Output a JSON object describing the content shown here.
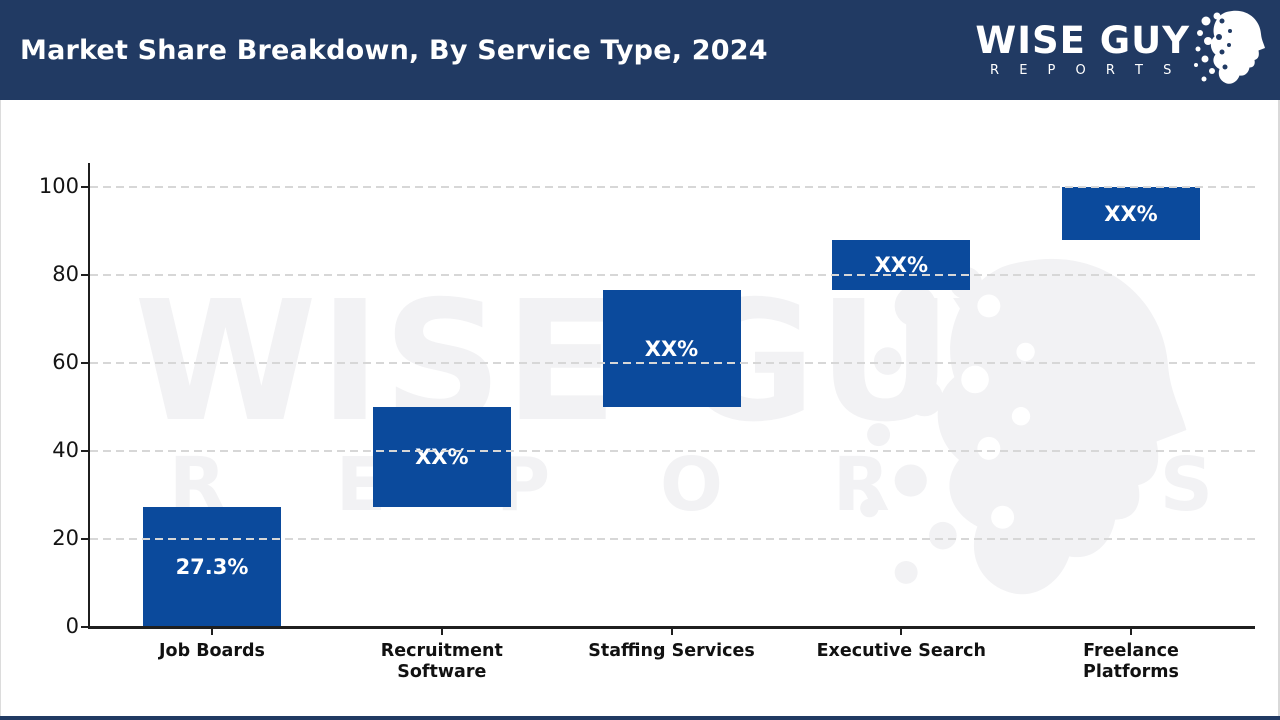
{
  "header": {
    "title": "Market Share Breakdown, By Service Type, 2024",
    "bg_color": "#213a63",
    "logo": {
      "name": "WISE GUY",
      "sub": "R E P O R T S",
      "icon": "dotted-head-profile"
    }
  },
  "watermark": {
    "line1": "WISE GUY",
    "line2": "R E P O R T S",
    "icon": "dotted-head-profile",
    "color": "#f2f2f4"
  },
  "chart_data": {
    "type": "bar",
    "subtype": "floating-waterfall",
    "title": "Market Share Breakdown, By Service Type, 2024",
    "xlabel": "",
    "ylabel": "",
    "categories": [
      "Job Boards",
      "Recruitment Software",
      "Staffing Services",
      "Executive Search",
      "Freelance Platforms"
    ],
    "category_label_lines": [
      [
        "Job Boards"
      ],
      [
        "Recruitment",
        "Software"
      ],
      [
        "Staffing Services"
      ],
      [
        "Executive Search"
      ],
      [
        "Freelance",
        "Platforms"
      ]
    ],
    "segments": [
      {
        "category": "Job Boards",
        "start": 0,
        "end": 27.3,
        "label": "27.3%"
      },
      {
        "category": "Recruitment Software",
        "start": 27.3,
        "end": 50,
        "label": "XX%"
      },
      {
        "category": "Staffing Services",
        "start": 50,
        "end": 76.6,
        "label": "XX%"
      },
      {
        "category": "Executive Search",
        "start": 76.6,
        "end": 88,
        "label": "XX%"
      },
      {
        "category": "Freelance Platforms",
        "start": 88,
        "end": 100,
        "label": "XX%"
      }
    ],
    "yticks": [
      0,
      20,
      40,
      60,
      80,
      100
    ],
    "ylim": [
      0,
      105.5
    ],
    "grid": "horizontal dashed, drawn above bars",
    "legend": "none",
    "bar_color": "#0b4a9c",
    "bar_label_color": "#ffffff",
    "gridline_color": "#d7d7d7",
    "spine_color": "#1f1f1f"
  },
  "colors": {
    "header_bg": "#213a63",
    "footer_bg": "#213a63",
    "accent_blue": "#0b4a9c",
    "watermark": "#f2f2f4"
  }
}
